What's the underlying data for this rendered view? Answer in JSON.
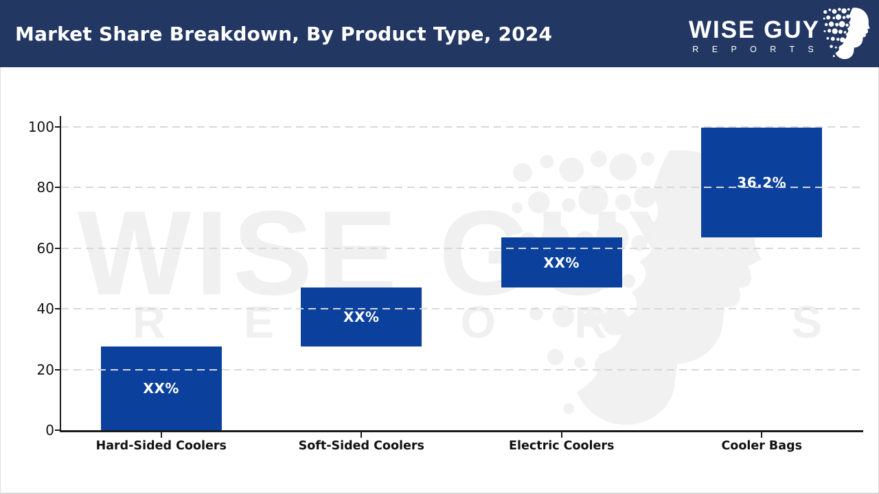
{
  "header": {
    "title": "Market Share Breakdown, By Product Type, 2024",
    "logo": {
      "line1": "WISE GUY",
      "line2": "R E P O R T S"
    }
  },
  "watermark": {
    "line1": "WISE GUY",
    "line2": "R E P O R T S"
  },
  "icons": {
    "logo_face": "dotted-face-profile"
  },
  "colors": {
    "header_bg": "#233763",
    "bar": "#0b419c",
    "grid": "#d8d8d8",
    "axis": "#1a1a1a",
    "tick_text": "#111111",
    "bar_label_text": "#ffffff",
    "watermark": "#f0f0f0"
  },
  "chart_data": {
    "type": "bar",
    "subtype": "waterfall",
    "title": "Market Share Breakdown, By Product Type, 2024",
    "categories": [
      "Hard-Sided Coolers",
      "Soft-Sided Coolers",
      "Electric Coolers",
      "Cooler Bags"
    ],
    "series": [
      {
        "name": "Market Share (%)",
        "starts": [
          0,
          27.5,
          47,
          63.5
        ],
        "values": [
          27.5,
          19.5,
          16.5,
          36.2
        ]
      }
    ],
    "bar_labels": [
      "XX%",
      "XX%",
      "XX%",
      "36.2%"
    ],
    "xlabel": "",
    "ylabel": "",
    "ylim": [
      0,
      104
    ],
    "yticks": [
      0,
      20,
      40,
      60,
      80,
      100
    ],
    "grid": "horizontal-dashed",
    "legend": "none"
  }
}
